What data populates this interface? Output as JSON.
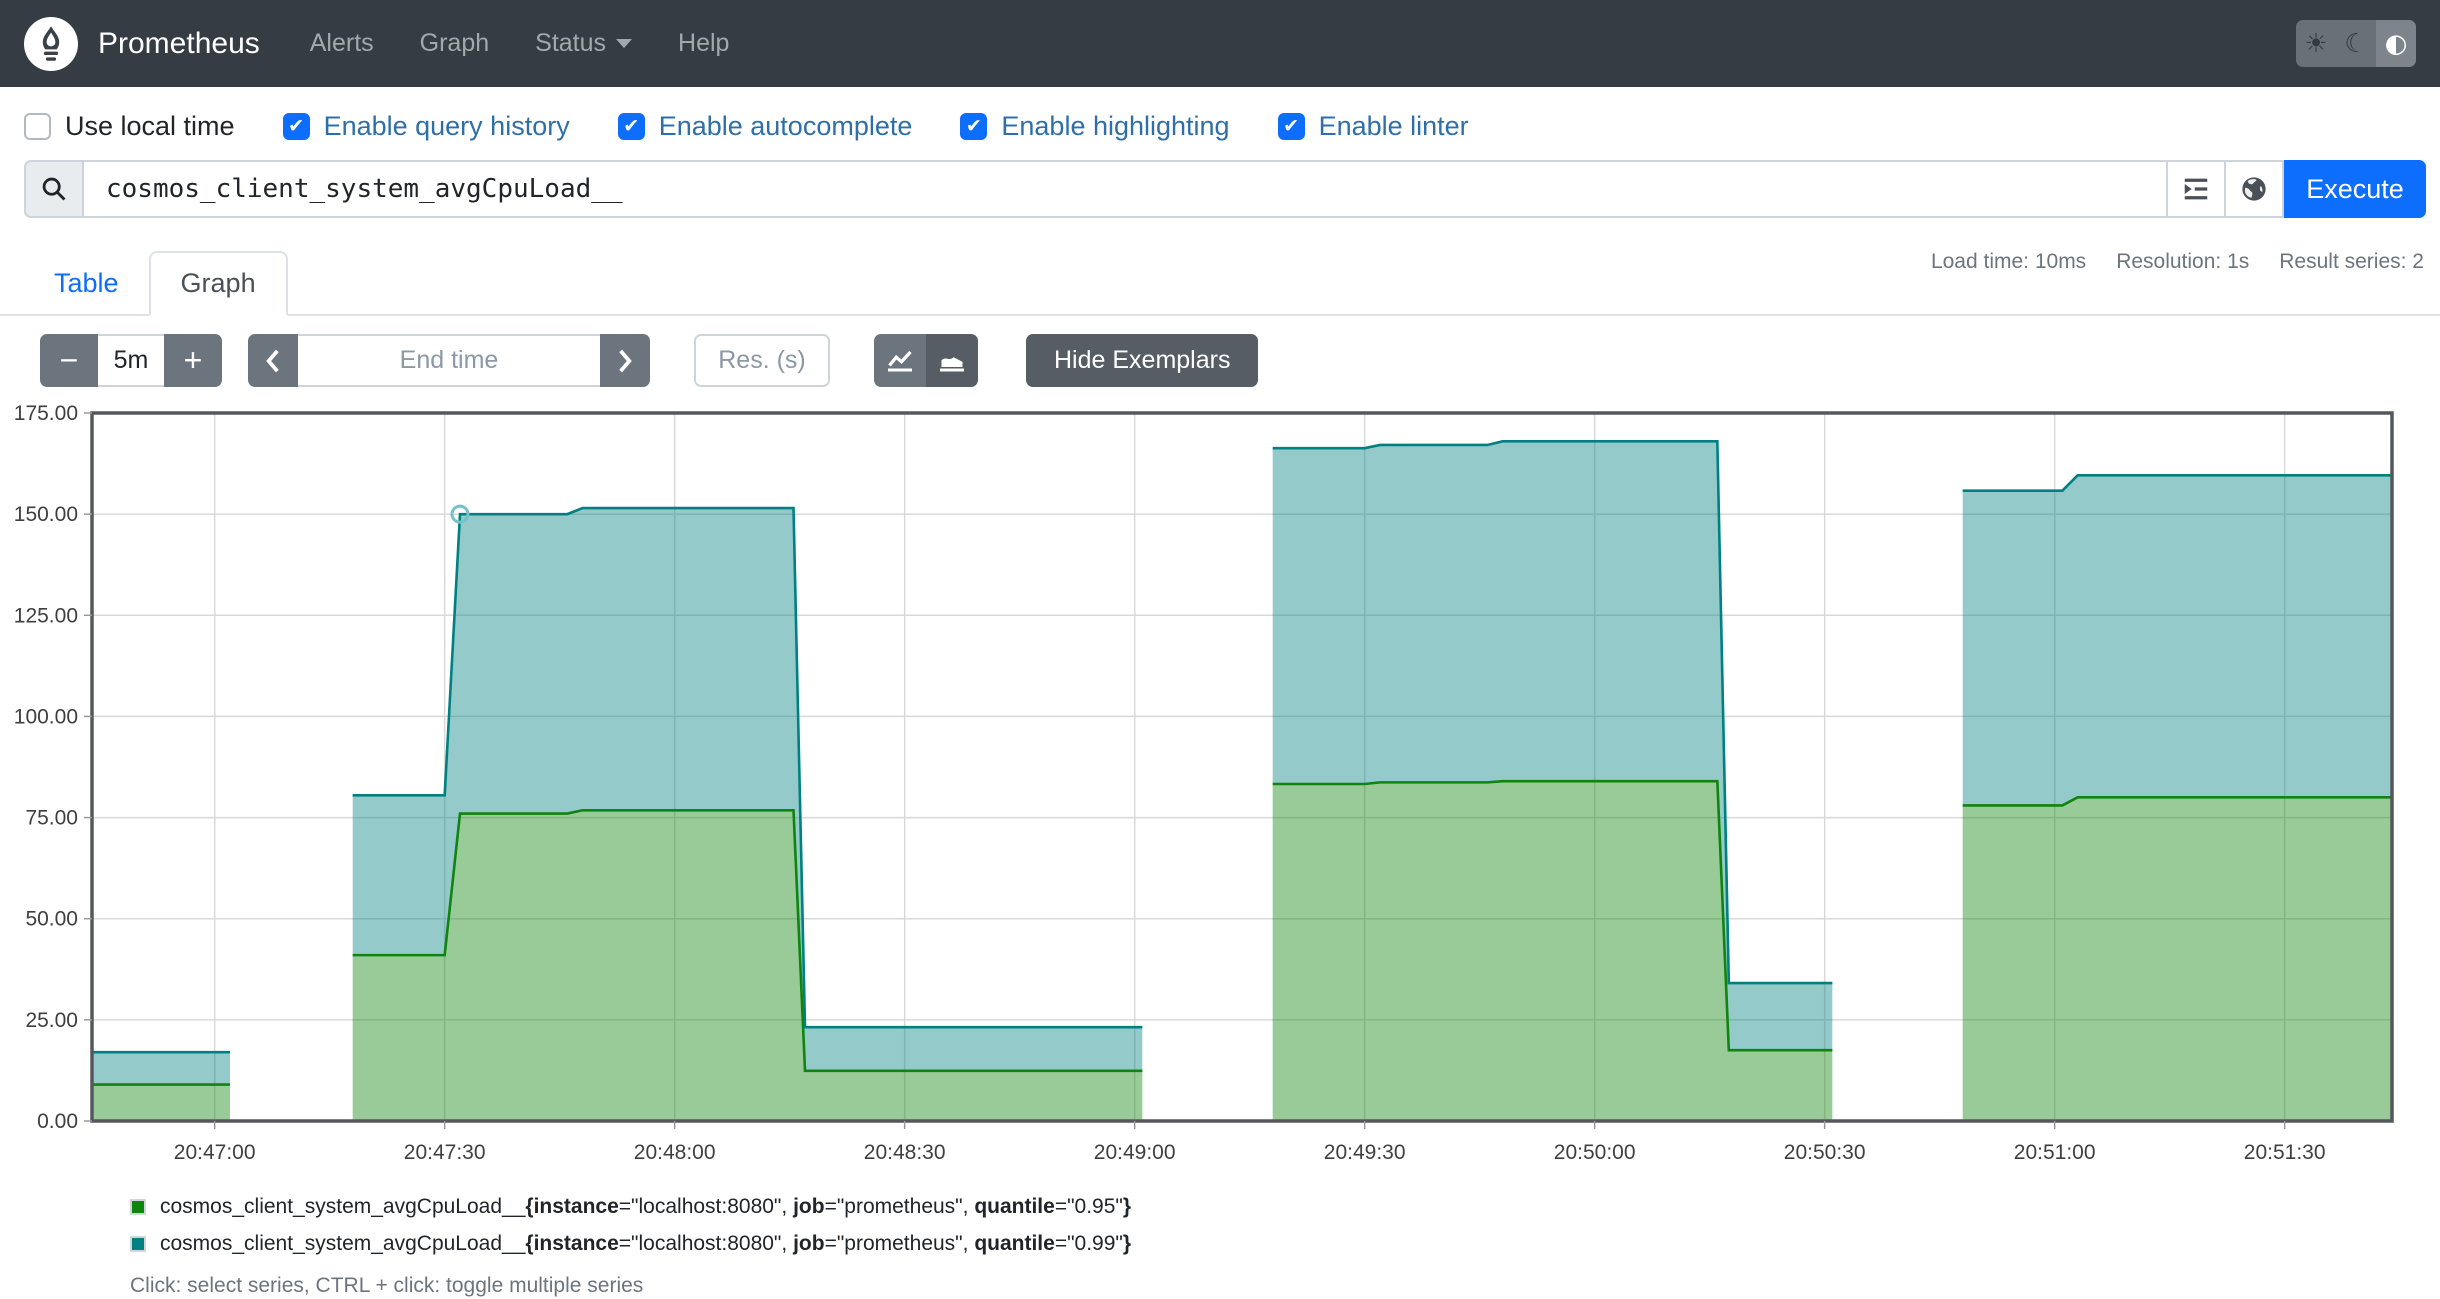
{
  "navbar": {
    "brand": "Prometheus",
    "links": [
      "Alerts",
      "Graph",
      "Status",
      "Help"
    ]
  },
  "icons": {
    "check": "✔",
    "sun": "☀",
    "moon": "☾",
    "contrast": "◐"
  },
  "options": [
    {
      "label": "Use local time",
      "checked": false
    },
    {
      "label": "Enable query history",
      "checked": true
    },
    {
      "label": "Enable autocomplete",
      "checked": true
    },
    {
      "label": "Enable highlighting",
      "checked": true
    },
    {
      "label": "Enable linter",
      "checked": true
    }
  ],
  "query": {
    "value": "cosmos_client_system_avgCpuLoad__",
    "execute_label": "Execute"
  },
  "tabs": [
    {
      "label": "Table",
      "active": false
    },
    {
      "label": "Graph",
      "active": true
    }
  ],
  "stats": [
    "Load time: 10ms",
    "Resolution: 1s",
    "Result series: 2"
  ],
  "controls": {
    "minus_label": "−",
    "range_value": "5m",
    "plus_label": "+",
    "end_time_placeholder": "End time",
    "res_placeholder": "Res. (s)",
    "hide_exemplars_label": "Hide Exemplars"
  },
  "chart_data": {
    "type": "area",
    "stacked": true,
    "title": "",
    "xlabel": "",
    "ylabel": "",
    "x_range_seconds": 300,
    "x_start_time": "20:46:44",
    "x_end_time": "20:51:44",
    "ylim": [
      0,
      175
    ],
    "grid": true,
    "y_ticks": [
      0,
      25,
      50,
      75,
      100,
      125,
      150,
      175
    ],
    "x_ticks": [
      {
        "t": 16,
        "label": "20:47:00"
      },
      {
        "t": 46,
        "label": "20:47:30"
      },
      {
        "t": 76,
        "label": "20:48:00"
      },
      {
        "t": 106,
        "label": "20:48:30"
      },
      {
        "t": 136,
        "label": "20:49:00"
      },
      {
        "t": 166,
        "label": "20:49:30"
      },
      {
        "t": 196,
        "label": "20:50:00"
      },
      {
        "t": 226,
        "label": "20:50:30"
      },
      {
        "t": 256,
        "label": "20:51:00"
      },
      {
        "t": 286,
        "label": "20:51:30"
      }
    ],
    "series": [
      {
        "name": "cosmos_client_system_avgCpuLoad__{instance=\"localhost:8080\", job=\"prometheus\", quantile=\"0.95\"}",
        "color": "#0f840f",
        "fill": "rgba(10,131,10,0.42)",
        "segments": [
          [
            [
              0,
              9
            ],
            [
              18,
              9
            ]
          ],
          [
            [
              34,
              41
            ],
            [
              46,
              41
            ],
            [
              48,
              76
            ],
            [
              62,
              76
            ],
            [
              64,
              76.8
            ],
            [
              91.5,
              76.8
            ],
            [
              93,
              12.4
            ],
            [
              137,
              12.4
            ]
          ],
          [
            [
              154,
              83.3
            ],
            [
              166,
              83.3
            ],
            [
              168,
              83.7
            ],
            [
              182,
              83.7
            ],
            [
              184,
              84
            ],
            [
              212,
              84
            ],
            [
              213.5,
              17.5
            ],
            [
              227,
              17.5
            ]
          ],
          [
            [
              244,
              78
            ],
            [
              257,
              78
            ],
            [
              259,
              80
            ],
            [
              300,
              80
            ]
          ]
        ]
      },
      {
        "name": "cosmos_client_system_avgCpuLoad__{instance=\"localhost:8080\", job=\"prometheus\", quantile=\"0.99\"}",
        "color": "#008080",
        "fill": "rgba(0,128,128,0.42)",
        "segments": [
          [
            [
              0,
              8
            ],
            [
              18,
              8
            ]
          ],
          [
            [
              34,
              39.5
            ],
            [
              46,
              39.5
            ],
            [
              48,
              74
            ],
            [
              62,
              74
            ],
            [
              64,
              74.7
            ],
            [
              91.5,
              74.7
            ],
            [
              93,
              10.8
            ],
            [
              137,
              10.8
            ]
          ],
          [
            [
              154,
              83
            ],
            [
              166,
              83
            ],
            [
              168,
              83.4
            ],
            [
              182,
              83.4
            ],
            [
              184,
              84
            ],
            [
              212,
              84
            ],
            [
              213.5,
              16.6
            ],
            [
              227,
              16.6
            ]
          ],
          [
            [
              244,
              77.8
            ],
            [
              257,
              77.8
            ],
            [
              259,
              79.6
            ],
            [
              287,
              79.6
            ],
            [
              289,
              80.6
            ],
            [
              300,
              80.6
            ]
          ]
        ]
      }
    ],
    "exemplar_point": {
      "t": 48,
      "value": 150
    }
  },
  "legend": {
    "series": [
      {
        "color": "#0f840f",
        "name": "cosmos_client_system_avgCpuLoad__",
        "labels": [
          {
            "key": "instance",
            "value": "localhost:8080"
          },
          {
            "key": "job",
            "value": "prometheus"
          },
          {
            "key": "quantile",
            "value": "0.95"
          }
        ]
      },
      {
        "color": "#008080",
        "name": "cosmos_client_system_avgCpuLoad__",
        "labels": [
          {
            "key": "instance",
            "value": "localhost:8080"
          },
          {
            "key": "job",
            "value": "prometheus"
          },
          {
            "key": "quantile",
            "value": "0.99"
          }
        ]
      }
    ]
  },
  "footer_hint": "Click: select series, CTRL + click: toggle multiple series"
}
